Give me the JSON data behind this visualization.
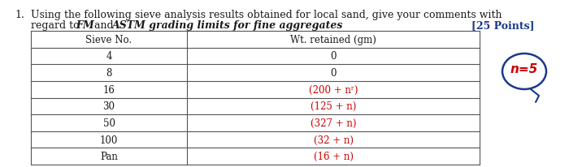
{
  "title_line1": "Using the following sieve analysis results obtained for local sand, give your comments with",
  "title_line2_pre": "regard to ",
  "title_fm": "FM",
  "title_and": " and ",
  "title_astm": "ASTM grading limits for fine aggregates",
  "title_period": ".",
  "title_points": "[25 Points]",
  "question_num": "1.",
  "table_headers": [
    "Sieve No.",
    "Wt. retained (gm)"
  ],
  "sieve_nos": [
    "4",
    "8",
    "16",
    "30",
    "50",
    "100",
    "Pan"
  ],
  "wt_retained": [
    "0",
    "0",
    "(200 + nʳ)",
    "(125 + n)",
    "(327 + n)",
    "(32 + n)",
    "(16 + n)"
  ],
  "wt_red_rows": [
    2,
    3,
    4,
    5,
    6
  ],
  "bg_color": "#ffffff",
  "text_color": "#1a1a1a",
  "red_color": "#cc0000",
  "blue_color": "#1a3a8a",
  "points_color": "#1a3a8a",
  "table_line_color": "#555555",
  "fontsize_text": 9.0,
  "fontsize_table": 8.5
}
